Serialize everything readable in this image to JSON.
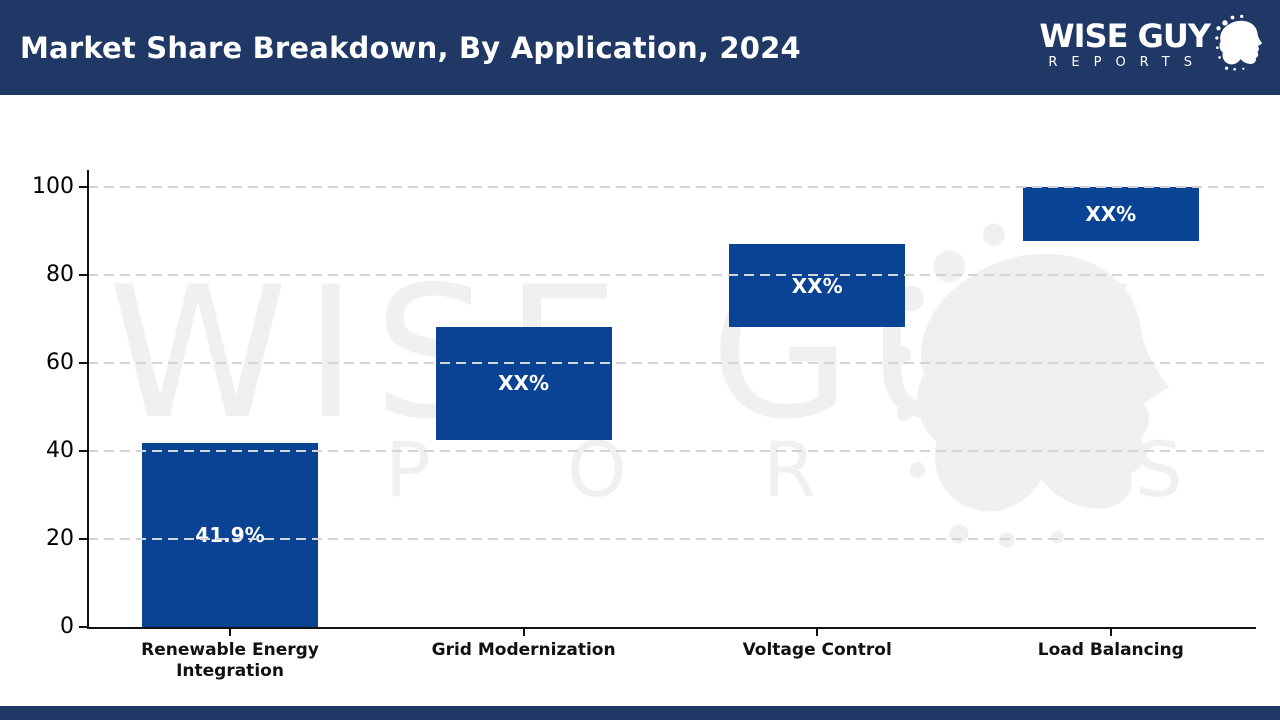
{
  "header": {
    "title": "Market Share Breakdown, By Application, 2024",
    "bg_color": "#1f3866",
    "logo": {
      "word": "WISE GUY",
      "sub": "REPORTS"
    }
  },
  "footer": {
    "bg_color": "#1f3866"
  },
  "watermark": {
    "line1": "WISE GUY",
    "line2": "P O R T S",
    "color": "#f0f0f0"
  },
  "chart_data": {
    "type": "bar",
    "subtype": "waterfall",
    "title": "Market Share Breakdown, By Application, 2024",
    "categories": [
      "Renewable Energy Integration",
      "Grid Modernization",
      "Voltage Control",
      "Load Balancing"
    ],
    "segments": [
      {
        "start": 0,
        "end": 41.9,
        "label": "41.9%"
      },
      {
        "start": 42.5,
        "end": 68.2,
        "label": "XX%"
      },
      {
        "start": 68.2,
        "end": 87.0,
        "label": "XX%"
      },
      {
        "start": 87.7,
        "end": 100,
        "label": "XX%"
      }
    ],
    "yticks": [
      0,
      20,
      40,
      60,
      80,
      100
    ],
    "ylim": [
      0,
      104
    ],
    "xlabel": "",
    "ylabel": "",
    "legend": "none",
    "grid": "horizontal-dashed",
    "bar_color": "#0a4294",
    "value_label_color": "#ffffff",
    "grid_color": "#d4d4d4",
    "axis_color": "#111111"
  }
}
